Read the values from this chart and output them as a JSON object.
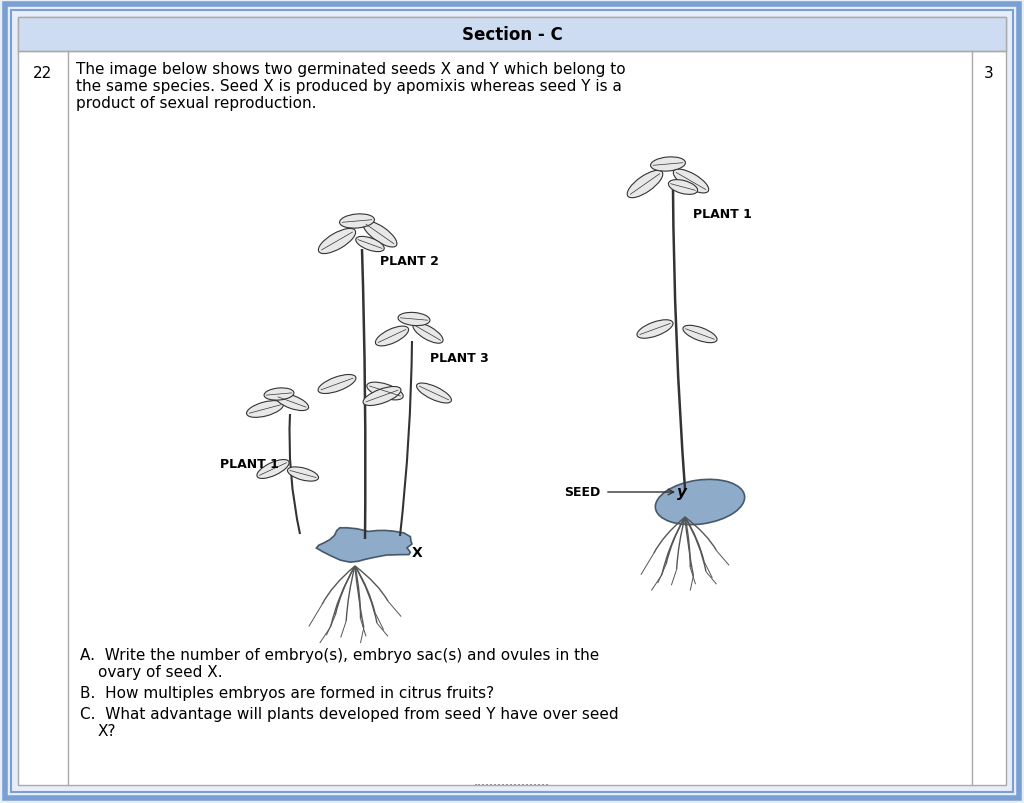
{
  "bg_color": "#e8eef8",
  "outer_border_color": "#7a9fd4",
  "header_bg_color": "#cddcf0",
  "header_text": "Section - C",
  "header_fontsize": 12,
  "q_number": "22",
  "q_marks": "3",
  "q_text_line1": "The image below shows two germinated seeds X and Y which belong to",
  "q_text_line2": "the same species. Seed X is produced by apomixis whereas seed Y is a",
  "q_text_line3": "product of sexual reproduction.",
  "dots": "...................",
  "text_fontsize": 11,
  "label_fontsize": 9,
  "seed_color": "#7a9ec0",
  "seed_edge": "#334455",
  "stem_color": "#333333",
  "leaf_face": "#e8e8e8",
  "leaf_edge": "#333333",
  "root_color": "#555555"
}
